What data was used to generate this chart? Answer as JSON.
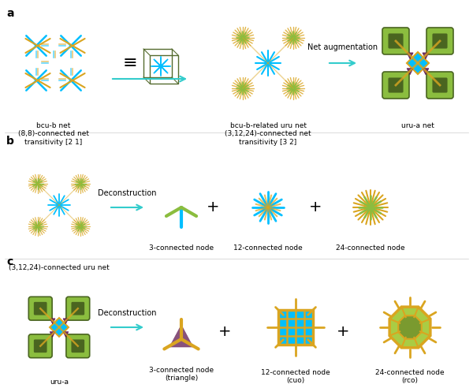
{
  "title_a": "a",
  "title_b": "b",
  "title_c": "c",
  "label_bcu_b": "bcu-b net\n(8,8)-connected net\ntransitivity [2 1]",
  "label_bcu_b_related": "bcu-b-related uru net\n(3,12,24)-connected net\ntransitivity [3 2]",
  "label_uru_a_net": "uru-a net",
  "label_net_aug": "Net augmentation",
  "label_deconstruction": "Deconstruction",
  "label_uru_net": "(3,12,24)-connected uru net",
  "label_3conn": "3-connected node",
  "label_12conn": "12-connected node",
  "label_24conn": "24-connected node",
  "label_uru_a": "uru-a",
  "label_3conn_tri": "3-connected node\n(triangle)",
  "label_12conn_cuo": "12-connected node\n(cuo)",
  "label_24conn_rco": "24-connected node\n(rco)",
  "color_cyan": "#00BFFF",
  "color_gold": "#DAA520",
  "color_green_dark": "#6B8E23",
  "color_green_bright": "#ADFF2F",
  "color_purple": "#800080",
  "color_arrow": "#4DBBBB",
  "bg": "#FFFFFF",
  "fig_width": 6.0,
  "fig_height": 4.92
}
